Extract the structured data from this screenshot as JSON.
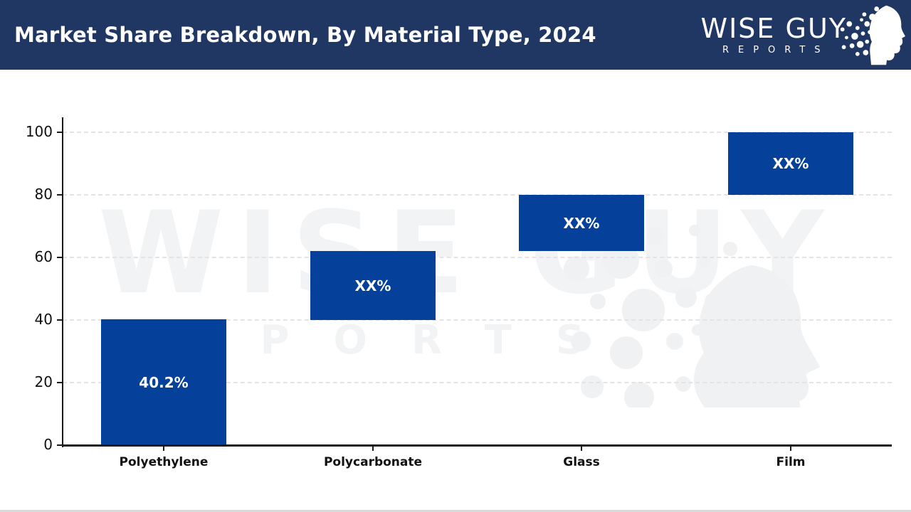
{
  "header": {
    "title": "Market Share Breakdown, By Material Type, 2024",
    "logo": {
      "line1": "WISE GUY",
      "line2": "REPORTS"
    }
  },
  "watermark": {
    "line1": "WISE GUY",
    "line2": "REPORTS"
  },
  "colors": {
    "header_bg": "#213763",
    "bar": "#05419b",
    "axis": "#1a1a1a",
    "grid": "#e4e4e4",
    "watermark": "#f2f3f4",
    "bar_label": "#ffffff"
  },
  "chart_data": {
    "type": "bar",
    "subtype": "waterfall",
    "title": "Market Share Breakdown, By Material Type, 2024",
    "xlabel": "",
    "ylabel": "",
    "ylim": [
      0,
      100
    ],
    "yticks": [
      0,
      20,
      40,
      60,
      80,
      100
    ],
    "grid": "horizontal-dashed",
    "legend": "none",
    "categories": [
      "Polyethylene",
      "Polycarbonate",
      "Glass",
      "Film"
    ],
    "segments": [
      {
        "category": "Polyethylene",
        "start": 0,
        "end": 40.2,
        "label": "40.2%"
      },
      {
        "category": "Polycarbonate",
        "start": 40,
        "end": 62,
        "label": "XX%"
      },
      {
        "category": "Glass",
        "start": 62,
        "end": 80,
        "label": "XX%"
      },
      {
        "category": "Film",
        "start": 80,
        "end": 100,
        "label": "XX%"
      }
    ]
  }
}
